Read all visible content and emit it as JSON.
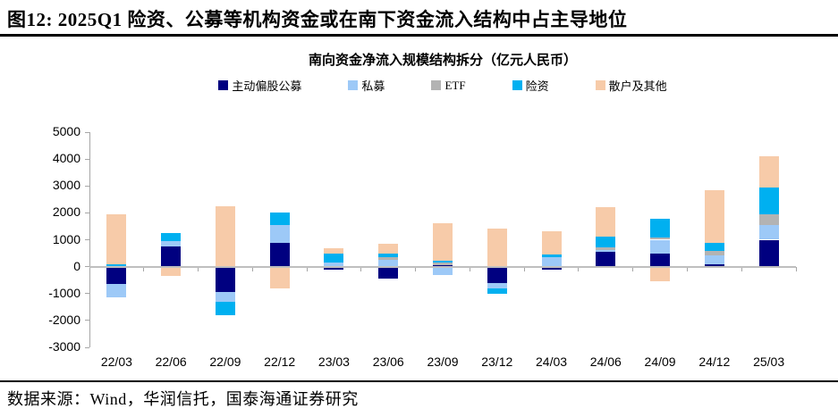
{
  "header": {
    "title": "图12:  2025Q1 险资、公募等机构资金或在南下资金流入结构中占主导地位"
  },
  "footer": {
    "source": "数据来源：Wind，华润信托，国泰海通证券研究"
  },
  "chart_data": {
    "type": "bar",
    "stacked": true,
    "title": "南向资金净流入规模结构拆分（亿元人民币）",
    "unit": "亿元人民币",
    "categories": [
      "22/03",
      "22/06",
      "22/09",
      "22/12",
      "23/03",
      "23/06",
      "23/09",
      "23/12",
      "24/03",
      "24/06",
      "24/09",
      "24/12",
      "25/03"
    ],
    "series": [
      {
        "name": "主动偏股公募",
        "color": "#000080",
        "values": [
          -650,
          750,
          -950,
          900,
          -100,
          -450,
          70,
          -600,
          -100,
          550,
          500,
          80,
          1000
        ]
      },
      {
        "name": "私募",
        "color": "#9DC9F7",
        "values": [
          -500,
          200,
          -350,
          650,
          150,
          250,
          -300,
          -200,
          350,
          80,
          500,
          350,
          550
        ]
      },
      {
        "name": "ETF",
        "color": "#B3B3B3",
        "values": [
          0,
          0,
          0,
          0,
          0,
          100,
          80,
          0,
          0,
          90,
          90,
          170,
          400
        ]
      },
      {
        "name": "险资",
        "color": "#00B0F0",
        "values": [
          100,
          300,
          -500,
          450,
          350,
          150,
          70,
          -200,
          100,
          380,
          700,
          300,
          1000
        ]
      },
      {
        "name": "散户及其他",
        "color": "#F7CBA9",
        "values": [
          1850,
          -350,
          2250,
          -800,
          200,
          350,
          1380,
          1400,
          850,
          1100,
          -550,
          1950,
          1150
        ]
      }
    ],
    "ylim": [
      -3000,
      5000
    ],
    "yticks": [
      5000,
      4000,
      3000,
      2000,
      1000,
      0,
      -1000,
      -2000,
      -3000
    ],
    "legend_position": "top",
    "grid": false,
    "axis_color": "#A6A6A6",
    "zero_line_color": "#BFBFBF"
  }
}
